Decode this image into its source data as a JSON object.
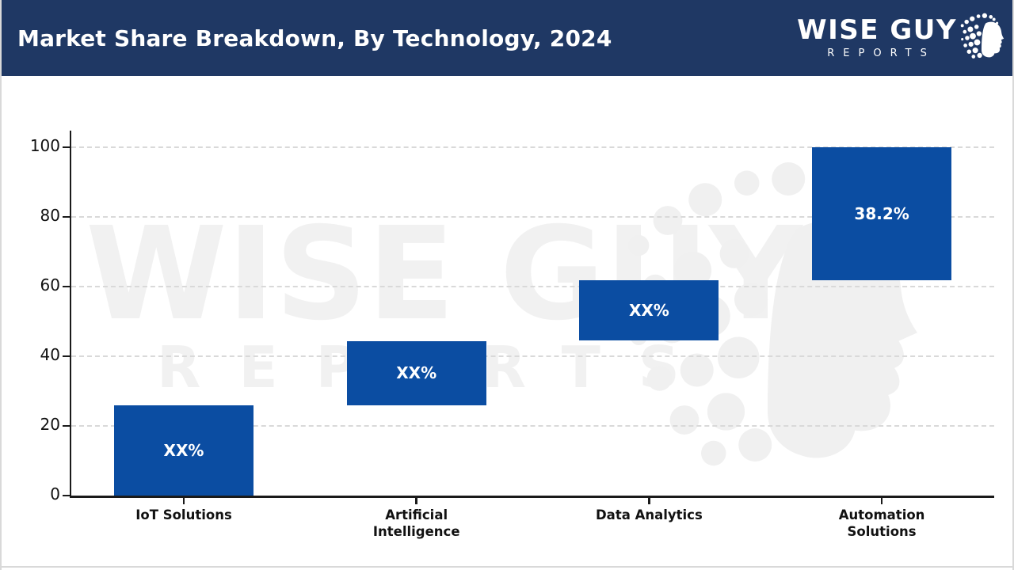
{
  "header": {
    "title": "Market Share Breakdown, By Technology, 2024",
    "logo": {
      "wordmark": "WISE GUY",
      "reports": "REPORTS"
    }
  },
  "watermark": {
    "line1": "WISE GUY",
    "line2": "REPORTS"
  },
  "colors": {
    "header_bg": "#1f3864",
    "bar": "#0b4da2",
    "grid": "#d9d9d9",
    "axis": "#1a1a1a",
    "bar_label": "#ffffff",
    "watermark": "#f1f1f1",
    "frame": "#d9d9d9"
  },
  "chart_data": {
    "type": "bar",
    "subtype": "waterfall-floating",
    "title": "Market Share Breakdown, By Technology, 2024",
    "categories": [
      "IoT Solutions",
      "Artificial Intelligence",
      "Data Analytics",
      "Automation Solutions"
    ],
    "series": [
      {
        "name": "Market Share (%)",
        "segments": [
          {
            "start": 0,
            "end": 26
          },
          {
            "start": 26,
            "end": 44.4
          },
          {
            "start": 44.5,
            "end": 61.8
          },
          {
            "start": 61.8,
            "end": 100
          }
        ]
      }
    ],
    "bar_labels": [
      "XX%",
      "XX%",
      "XX%",
      "38.2%"
    ],
    "xlabel": "",
    "ylabel": "",
    "yticks": [
      0,
      20,
      40,
      60,
      80,
      100
    ],
    "ylim": [
      0,
      105
    ],
    "grid": "horizontal-dashed",
    "legend": "none"
  }
}
